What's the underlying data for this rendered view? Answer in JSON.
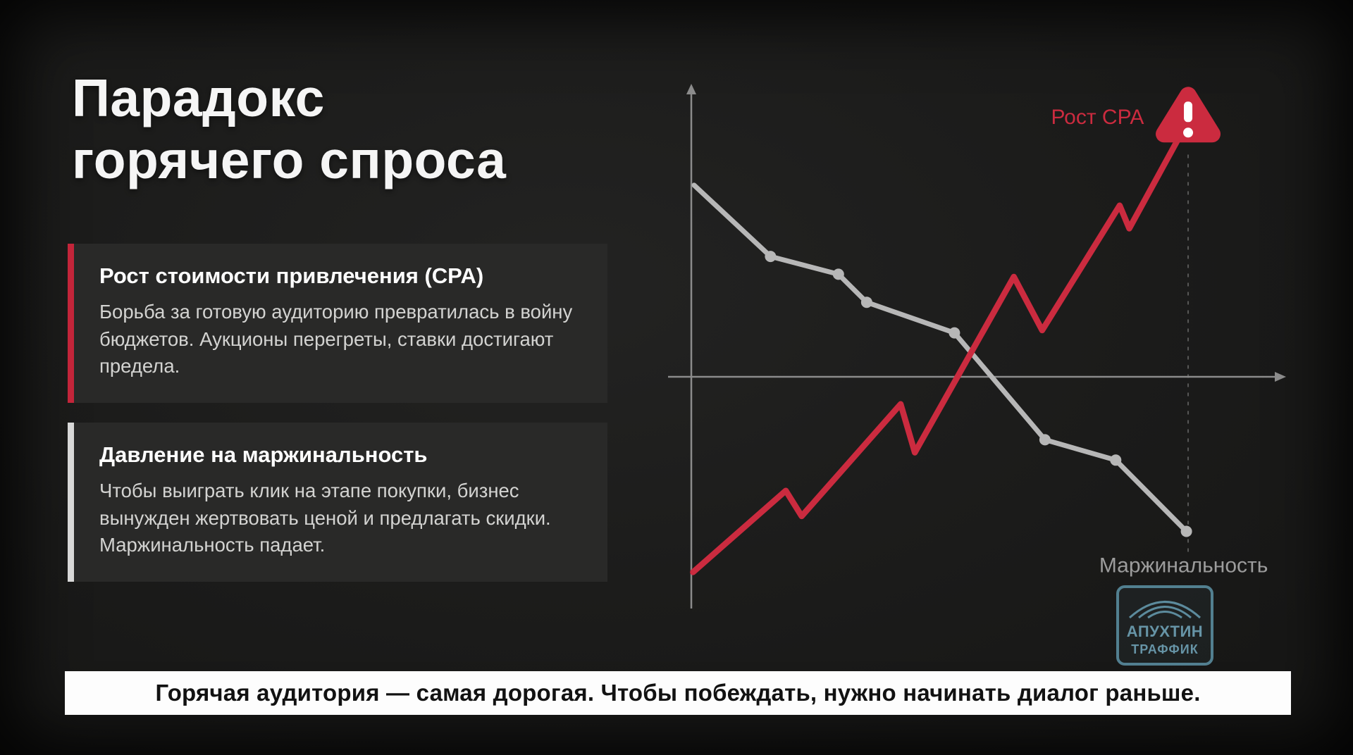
{
  "slide": {
    "title_line1": "Парадокс",
    "title_line2": "горячего спроса",
    "cards": [
      {
        "accent": "#c3253a",
        "heading": "Рост стоимости привлечения (CPA)",
        "body": "Борьба за готовую аудиторию превратилась в войну бюджетов. Аукционы перегреты, ставки достигают предела."
      },
      {
        "accent": "#d8d8d8",
        "heading": "Давление на маржинальность",
        "body": "Чтобы выиграть клик на этапе покупки, бизнес вынужден жертвовать ценой и предлагать скидки. Маржинальность падает."
      }
    ],
    "footer": "Горячая аудитория — самая дорогая. Чтобы побеждать, нужно начинать диалог раньше.",
    "watermark": {
      "line1": "АПУХТИН",
      "line2": "ТРАФФИК",
      "color": "#74aabf"
    }
  },
  "chart_data": {
    "type": "line",
    "title": "",
    "xlabel": "",
    "ylabel": "",
    "x_range": [
      0,
      100
    ],
    "y_range": [
      0,
      100
    ],
    "grid": false,
    "x_axis_position_y": 45,
    "axes_color": "#8b8b8b",
    "legend_position": "inline-labels",
    "series": [
      {
        "name": "Маржинальность",
        "color": "#b7b7b7",
        "width": 7,
        "marker_radius": 8,
        "marker_start_index": 1,
        "points": [
          [
            0.5,
            83
          ],
          [
            14,
            69
          ],
          [
            26,
            65.5
          ],
          [
            31,
            60
          ],
          [
            46.5,
            54
          ],
          [
            62.5,
            33
          ],
          [
            75,
            29
          ],
          [
            87.5,
            15
          ]
        ]
      },
      {
        "name": "Рост CPA",
        "color": "#cb2b3f",
        "width": 8.5,
        "points": [
          [
            0.3,
            7
          ],
          [
            16.7,
            23
          ],
          [
            19.5,
            18
          ],
          [
            37,
            40
          ],
          [
            39.5,
            30.5
          ],
          [
            57,
            65
          ],
          [
            62,
            54.5
          ],
          [
            75.7,
            79
          ],
          [
            77.4,
            74.5
          ],
          [
            87,
            94
          ]
        ]
      }
    ],
    "annotations": [
      {
        "type": "dashed_vline",
        "x": 87.8,
        "y_from": 11,
        "y_to": 90,
        "color": "#8a8a8a"
      },
      {
        "type": "label",
        "text": "Рост CPA",
        "x": 80,
        "y": 95,
        "anchor": "end",
        "color": "#cb2b3f",
        "size": 30
      },
      {
        "type": "label",
        "text": "Маржинальность",
        "x": 87,
        "y": 7,
        "anchor": "middle",
        "color": "#9c9c9c",
        "size": 30
      },
      {
        "type": "warning_triangle",
        "x": 87.8,
        "y": 96.5,
        "color": "#cb2b3f"
      }
    ]
  }
}
